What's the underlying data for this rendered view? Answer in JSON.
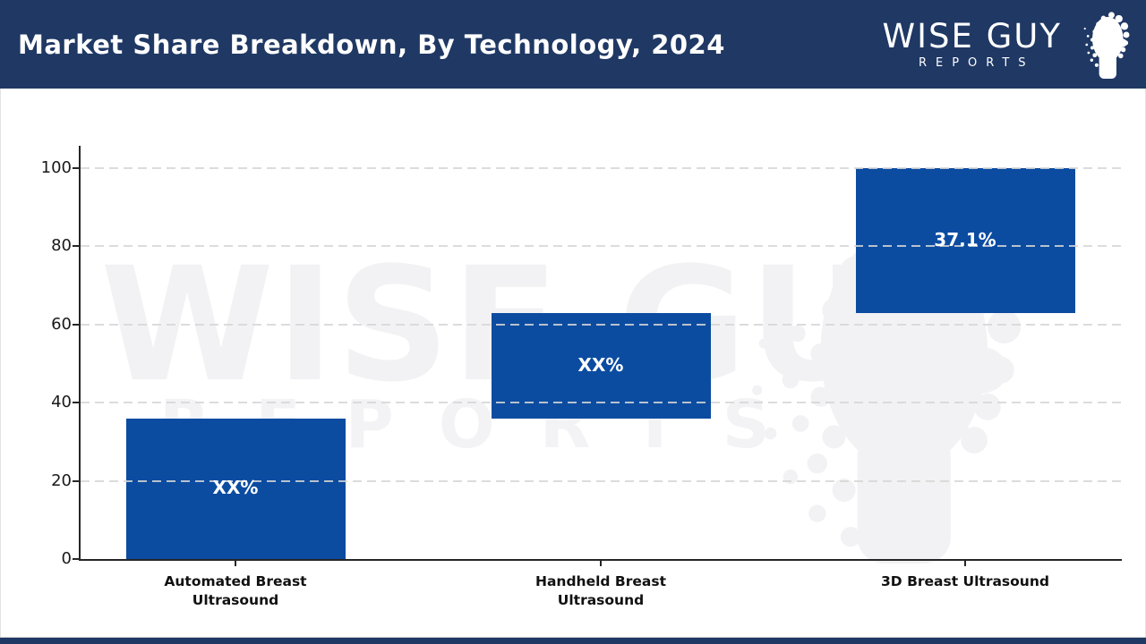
{
  "header": {
    "title": "Market Share Breakdown, By Technology, 2024",
    "logo": {
      "line1": "WISE GUY",
      "line2": "REPORTS"
    }
  },
  "watermark": {
    "line1": "WISE GUY",
    "line2": "REPORTS"
  },
  "colors": {
    "header_bg": "#1f3864",
    "footer_bg": "#1f3864",
    "bar_fill": "#0b4ca1",
    "axis": "#262626",
    "grid": "#d9d9d9",
    "watermark": "#f2f2f4",
    "bar_label_text": "#ffffff",
    "title_text": "#ffffff"
  },
  "chart_data": {
    "type": "bar",
    "subtype": "floating-waterfall-segments",
    "title": "Market Share Breakdown, By Technology, 2024",
    "categories": [
      "Automated Breast Ultrasound",
      "Handheld Breast Ultrasound",
      "3D Breast Ultrasound"
    ],
    "bars": [
      {
        "category": "Automated Breast Ultrasound",
        "start": 0,
        "end": 36,
        "value": 36,
        "label": "XX%"
      },
      {
        "category": "Handheld Breast Ultrasound",
        "start": 36,
        "end": 62.9,
        "value": 26.9,
        "label": "XX%"
      },
      {
        "category": "3D Breast Ultrasound",
        "start": 62.9,
        "end": 100,
        "value": 37.1,
        "label": "37.1%"
      }
    ],
    "xlabel": "",
    "ylabel": "",
    "yticks": [
      0,
      20,
      40,
      60,
      80,
      100
    ],
    "ylim": [
      0,
      105.5
    ],
    "grid": {
      "horizontal": true,
      "style": "dashed",
      "drawn_over_bars": true
    },
    "legend": null
  }
}
